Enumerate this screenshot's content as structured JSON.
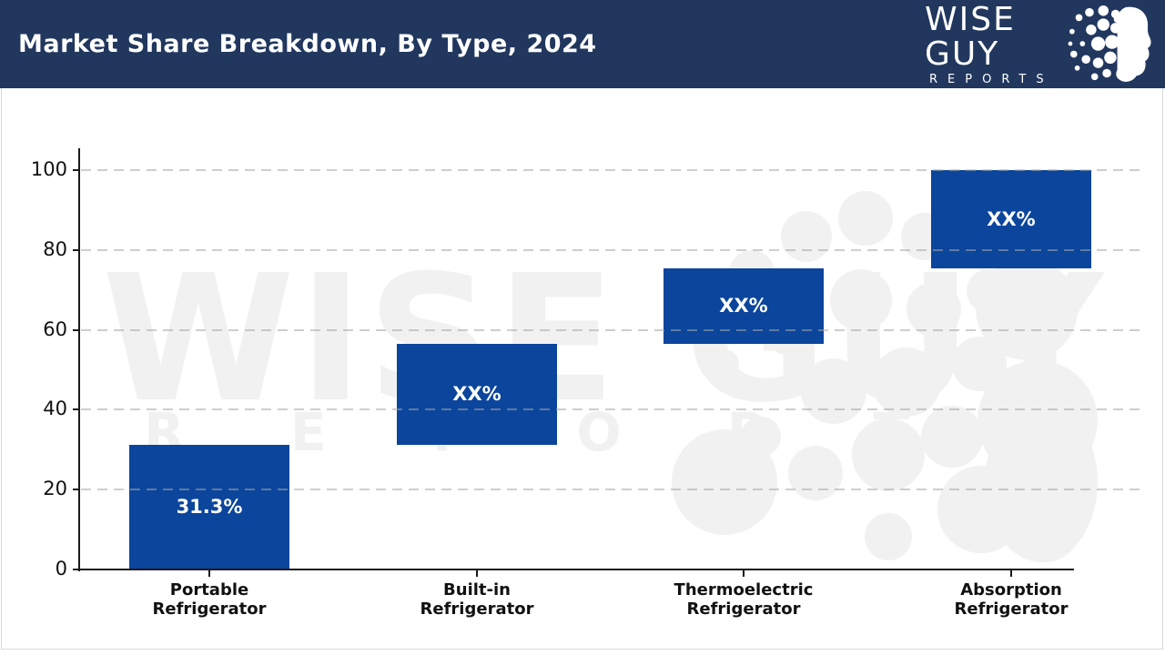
{
  "header": {
    "title": "Market Share Breakdown, By Type, 2024",
    "bg_color": "#21375E",
    "logo": {
      "line1": "WISE GUY",
      "line2": "REPORTS"
    }
  },
  "watermark": {
    "line1": "WISE GUY",
    "line2": "R E P O R T S"
  },
  "chart_data": {
    "type": "bar",
    "subtype": "waterfall",
    "title": "Market Share Breakdown, By Type, 2024",
    "categories": [
      "Portable\nRefrigerator",
      "Built-in\nRefrigerator",
      "Thermoelectric\nRefrigerator",
      "Absorption\nRefrigerator"
    ],
    "segments": [
      {
        "category": "Portable Refrigerator",
        "start": 0,
        "end": 31.3,
        "label": "31.3%"
      },
      {
        "category": "Built-in Refrigerator",
        "start": 31.3,
        "end": 56.6,
        "label": "XX%"
      },
      {
        "category": "Thermoelectric Refrigerator",
        "start": 56.6,
        "end": 75.3,
        "label": "XX%"
      },
      {
        "category": "Absorption Refrigerator",
        "start": 75.3,
        "end": 100,
        "label": "XX%"
      }
    ],
    "yticks": [
      0,
      20,
      40,
      60,
      80,
      100
    ],
    "ylim": [
      0,
      105
    ],
    "xlabel": "",
    "ylabel": "",
    "grid": "dashed-horizontal",
    "legend": "none",
    "bar_color": "#0B459C",
    "bar_label_color": "#FFFFFF",
    "axis_color": "#1A1A1A"
  }
}
